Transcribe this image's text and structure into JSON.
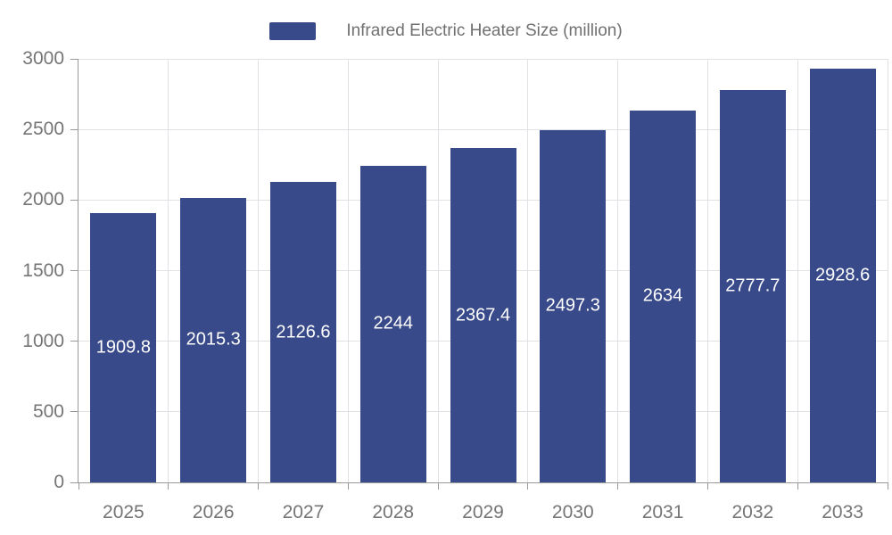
{
  "chart_data": {
    "type": "bar",
    "title": "Infrared Electric Heater Size (million)",
    "legend_entries": [
      "Infrared Electric Heater Size (million)"
    ],
    "categories": [
      "2025",
      "2026",
      "2027",
      "2028",
      "2029",
      "2030",
      "2031",
      "2032",
      "2033"
    ],
    "values": [
      1909.8,
      2015.3,
      2126.6,
      2244,
      2367.4,
      2497.3,
      2634,
      2777.7,
      2928.6
    ],
    "value_labels": [
      "1909.8",
      "2015.3",
      "2126.6",
      "2244",
      "2367.4",
      "2497.3",
      "2634",
      "2777.7",
      "2928.6"
    ],
    "xlabel": "",
    "ylabel": "",
    "ylim": [
      0,
      3000
    ],
    "yticks": [
      0,
      500,
      1000,
      1500,
      2000,
      2500,
      3000
    ],
    "grid": true,
    "legend_position": "top-center",
    "colors": {
      "bar": "#394A8A",
      "grid": "#E2E2E6",
      "axis": "#999999",
      "tick_text": "#757575",
      "legend_text": "#707070",
      "value_label": "#FFFFFF",
      "background": "#FFFFFF"
    }
  }
}
